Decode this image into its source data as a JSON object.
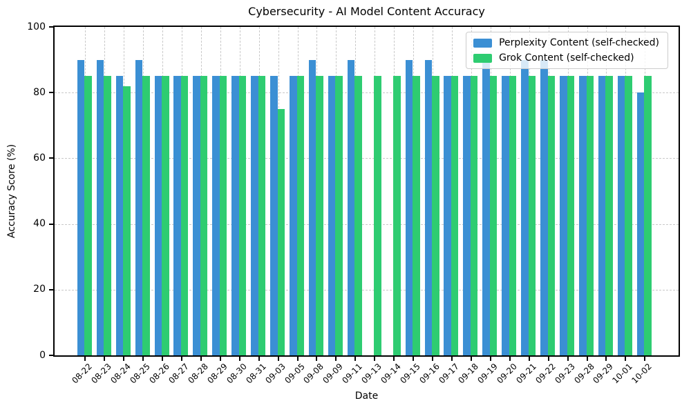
{
  "chart_data": {
    "type": "bar",
    "title": "Cybersecurity - AI Model Content Accuracy",
    "xlabel": "Date",
    "ylabel": "Accuracy Score (%)",
    "ylim": [
      0,
      100
    ],
    "yticks": [
      0,
      20,
      40,
      60,
      80,
      100
    ],
    "grid": true,
    "grid_style": "dashed",
    "legend_position": "upper right",
    "categories": [
      "08-22",
      "08-23",
      "08-24",
      "08-25",
      "08-26",
      "08-27",
      "08-28",
      "08-29",
      "08-30",
      "08-31",
      "09-03",
      "09-05",
      "09-08",
      "09-09",
      "09-11",
      "09-13",
      "09-14",
      "09-15",
      "09-16",
      "09-17",
      "09-18",
      "09-19",
      "09-20",
      "09-21",
      "09-22",
      "09-23",
      "09-28",
      "09-29",
      "10-01",
      "10-02"
    ],
    "series": [
      {
        "name": "Perplexity Content (self-checked)",
        "color": "#3b8fd4",
        "values": [
          90,
          90,
          85,
          90,
          85,
          85,
          85,
          85,
          85,
          85,
          85,
          85,
          90,
          85,
          90,
          null,
          null,
          90,
          90,
          85,
          85,
          90,
          85,
          90,
          90,
          85,
          85,
          85,
          85,
          80
        ]
      },
      {
        "name": "Grok Content (self-checked)",
        "color": "#2ecc71",
        "values": [
          85,
          85,
          82,
          85,
          85,
          85,
          85,
          85,
          85,
          85,
          75,
          85,
          85,
          85,
          85,
          85,
          85,
          85,
          85,
          85,
          85,
          85,
          85,
          85,
          85,
          85,
          85,
          85,
          85,
          85
        ]
      }
    ]
  },
  "colors": {
    "spine": "#000000",
    "grid": "#c8c8c8",
    "background": "#ffffff",
    "legend_border": "#cccccc"
  }
}
